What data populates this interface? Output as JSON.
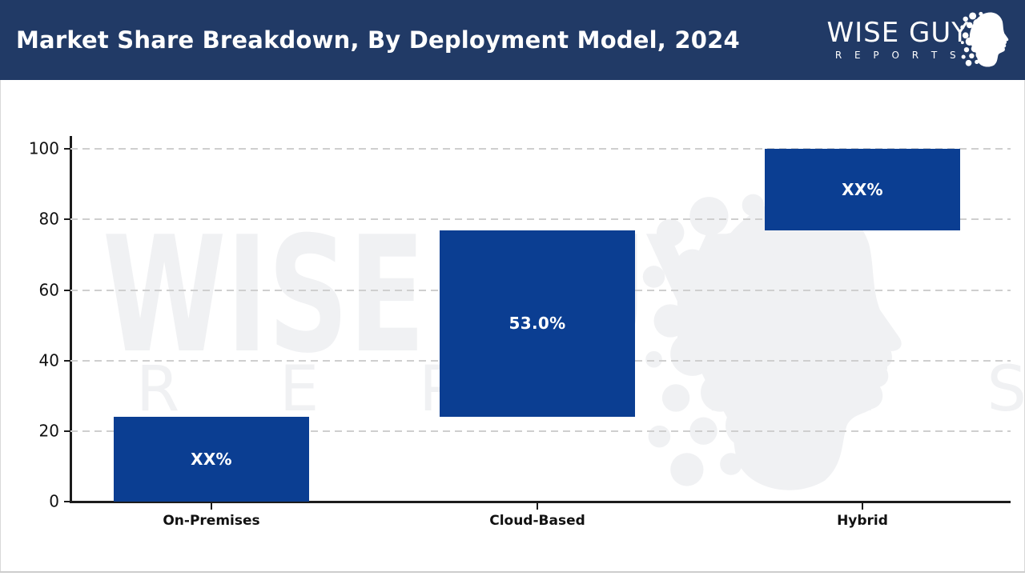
{
  "header": {
    "title": "Market Share Breakdown, By Deployment Model, 2024",
    "logo": {
      "name": "WISE GUY",
      "tagline": "R E P O R T S"
    }
  },
  "watermark": {
    "name": "WISE GUY",
    "tagline": "R E P O R T S"
  },
  "colors": {
    "header_bg": "#213a66",
    "bar": "#0b3e92",
    "grid": "#cfcfcf",
    "axis": "#1c1c1c",
    "bar_label": "#ffffff",
    "watermark": "#f0f1f3"
  },
  "chart_data": {
    "type": "bar",
    "variant": "floating-waterfall",
    "title": "Market Share Breakdown, By Deployment Model, 2024",
    "categories": [
      "On-Premises",
      "Cloud-Based",
      "Hybrid"
    ],
    "series": [
      {
        "name": "Market share (%)",
        "segments": [
          {
            "category": "On-Premises",
            "start": 0,
            "end": 24,
            "label": "XX%"
          },
          {
            "category": "Cloud-Based",
            "start": 24,
            "end": 77,
            "label": "53.0%"
          },
          {
            "category": "Hybrid",
            "start": 77,
            "end": 100,
            "label": "XX%"
          }
        ]
      }
    ],
    "xlabel": "",
    "ylabel": "",
    "ylim": [
      0,
      103.5
    ],
    "yticks": [
      0,
      20,
      40,
      60,
      80,
      100
    ],
    "grid": "horizontal-dashed",
    "legend": "none"
  }
}
